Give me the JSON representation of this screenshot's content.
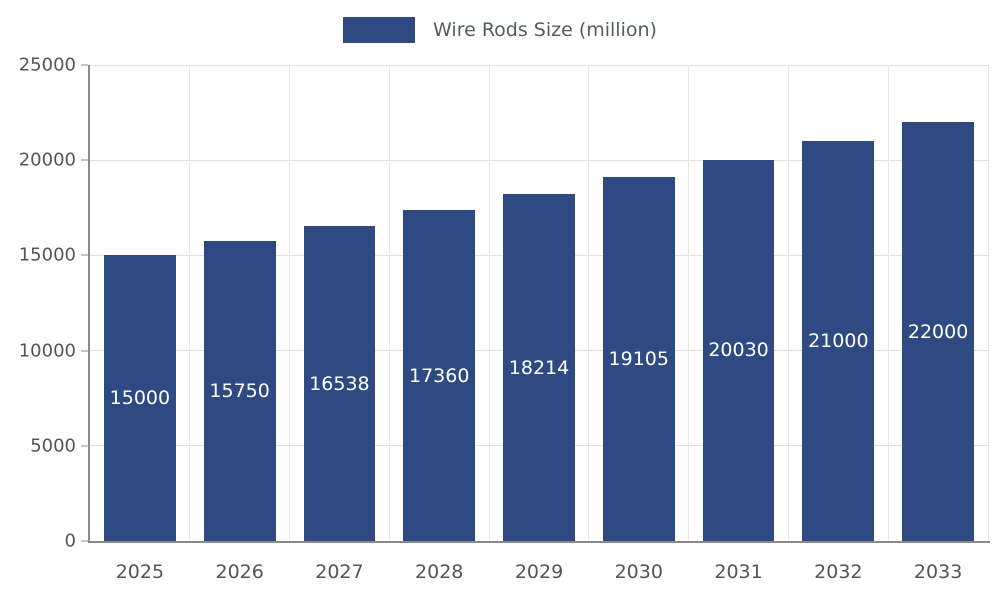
{
  "chart_data": {
    "type": "bar",
    "series_name": "Wire Rods Size (million)",
    "categories": [
      "2025",
      "2026",
      "2027",
      "2028",
      "2029",
      "2030",
      "2031",
      "2032",
      "2033"
    ],
    "values": [
      15000,
      15750,
      16538,
      17360,
      18214,
      19105,
      20030,
      21000,
      22000
    ],
    "xlabel": "",
    "ylabel": "",
    "ylim": [
      0,
      25000
    ],
    "yticks": [
      0,
      5000,
      10000,
      15000,
      20000,
      25000
    ],
    "grid": true,
    "legend_position": "top-center",
    "bar_color": "#2f4a83",
    "bar_label_color": "#ffffff",
    "axis_text_color": "#555555"
  }
}
